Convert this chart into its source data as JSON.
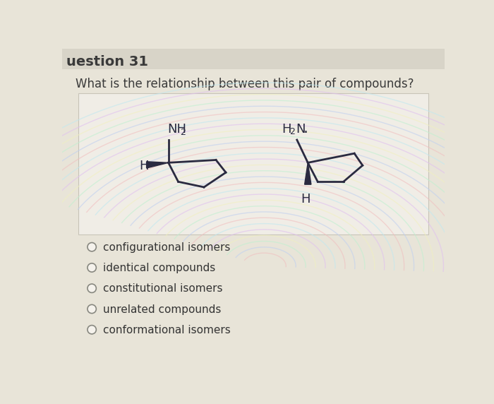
{
  "title": "uestion 31",
  "question": "What is the relationship between this pair of compounds?",
  "options": [
    "configurational isomers",
    "identical compounds",
    "constitutional isomers",
    "unrelated compounds",
    "conformational isomers"
  ],
  "bg_color": "#e8e4d8",
  "panel_color": "#f0ede6",
  "title_color": "#3a3a3a",
  "question_color": "#3a3a3a",
  "option_color": "#333333",
  "title_fontsize": 14,
  "question_fontsize": 12,
  "option_fontsize": 11,
  "mol_color": "#2a2a40",
  "wave_colors": [
    "#f0c0c0",
    "#c0d0f0",
    "#c0f0d0",
    "#f0f0c0",
    "#e0c0f0",
    "#c0e8f0"
  ]
}
